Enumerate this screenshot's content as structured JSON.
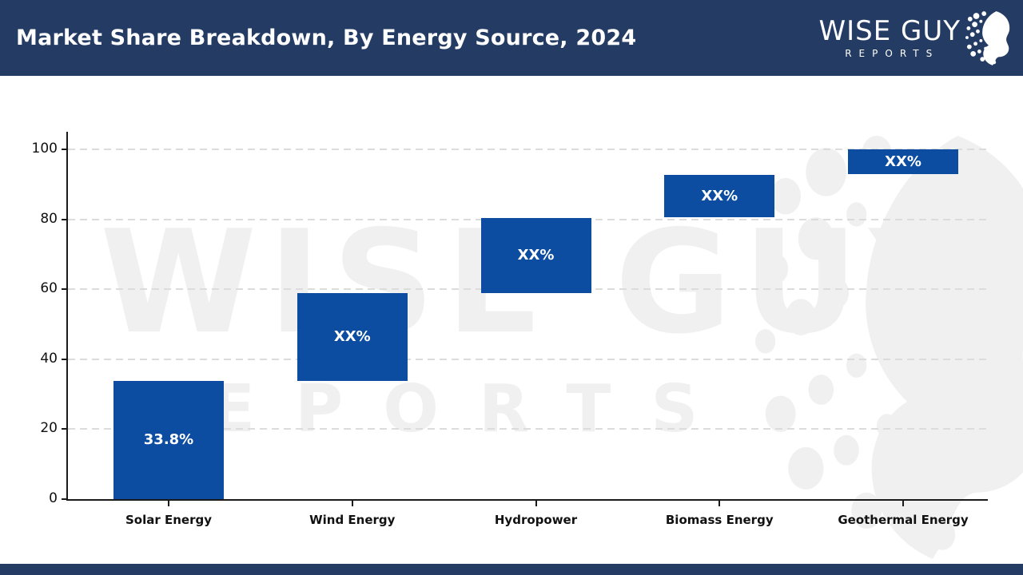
{
  "header": {
    "title": "Market Share Breakdown, By Energy Source, 2024",
    "brand": {
      "line1": "WISE GUY",
      "line2": "REPORTS"
    }
  },
  "watermark": {
    "line1": "WISE GUY",
    "line2": "REPORTS"
  },
  "colors": {
    "header_bg": "#243b64",
    "footer_bg": "#243b64",
    "bar": "#0c4da2",
    "bar_label": "#ffffff",
    "gridline": "#dcdcdc",
    "watermark": "#f0f0f0",
    "axis_text": "#111111"
  },
  "chart_data": {
    "type": "bar",
    "subtype": "waterfall",
    "title": "Market Share Breakdown, By Energy Source, 2024",
    "xlabel": "",
    "ylabel": "",
    "ylim": [
      0,
      100
    ],
    "yticks": [
      0,
      20,
      40,
      60,
      80,
      100
    ],
    "grid": "horizontal-dashed",
    "legend": "none",
    "categories": [
      "Solar Energy",
      "Wind Energy",
      "Hydropower",
      "Biomass Energy",
      "Geothermal Energy"
    ],
    "segments": [
      {
        "category": "Solar Energy",
        "start": 0,
        "end": 33.8,
        "label": "33.8%"
      },
      {
        "category": "Wind Energy",
        "start": 33.8,
        "end": 59,
        "label": "XX%"
      },
      {
        "category": "Hydropower",
        "start": 59,
        "end": 80.4,
        "label": "XX%"
      },
      {
        "category": "Biomass Energy",
        "start": 80.7,
        "end": 92.8,
        "label": "XX%"
      },
      {
        "category": "Geothermal Energy",
        "start": 92.9,
        "end": 100,
        "label": "XX%"
      }
    ]
  }
}
